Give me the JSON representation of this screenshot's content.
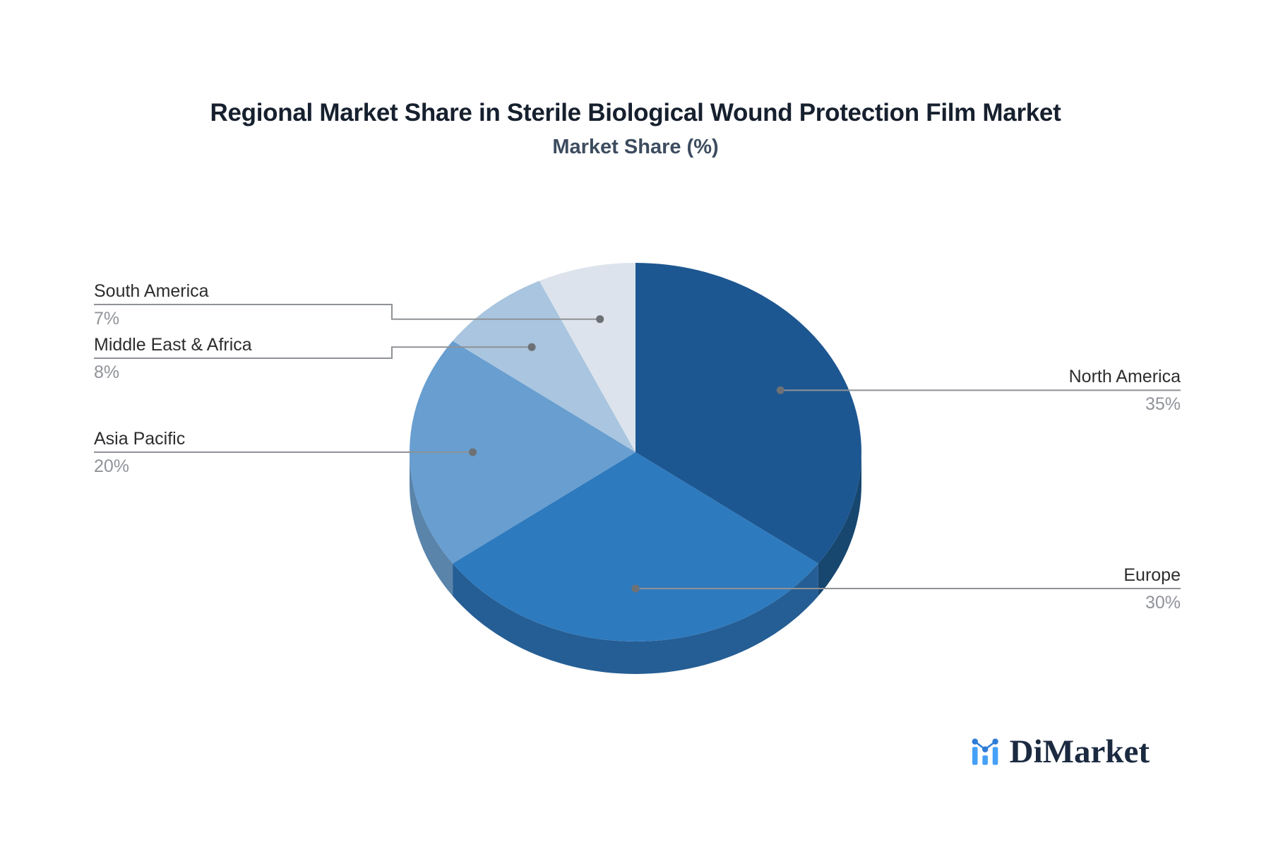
{
  "page": {
    "title": "Regional Market Share in Sterile Biological Wound Protection Film Market",
    "subtitle": "Market Share (%)"
  },
  "chart_data": {
    "type": "pie",
    "style": "3d-pie",
    "title": "Regional Market Share in Sterile Biological Wound Protection Film Market",
    "subtitle": "Market Share (%)",
    "unit": "%",
    "clockwise": true,
    "start_angle_deg_from_top": 0,
    "legend_position": "callout-labels",
    "slices": [
      {
        "label": "North America",
        "value": 35,
        "display": "35%",
        "color": "#1d5791",
        "side_color": "#17466f",
        "label_side": "right"
      },
      {
        "label": "Europe",
        "value": 30,
        "display": "30%",
        "color": "#2e7abe",
        "side_color": "#255e94",
        "label_side": "right"
      },
      {
        "label": "Asia Pacific",
        "value": 20,
        "display": "20%",
        "color": "#689ed0",
        "side_color": "#5a84aa",
        "label_side": "left"
      },
      {
        "label": "Middle East & Africa",
        "value": 8,
        "display": "8%",
        "color": "#a9c5df",
        "side_color": "#8fb0cc",
        "label_side": "left"
      },
      {
        "label": "South America",
        "value": 7,
        "display": "7%",
        "color": "#dce3ec",
        "side_color": "#c2ccd9",
        "label_side": "left"
      }
    ],
    "colors": {
      "leader_line": "#8f9296",
      "leader_dot": "#6d7175",
      "label_text": "#2d2d2d",
      "percent_text": "#909399",
      "title_text": "#16202e",
      "subtitle_text": "#3d4c5f"
    }
  },
  "logo": {
    "text": "DiMarket",
    "icon": "bar-line-chart-icon",
    "icon_color": "#45a1f8",
    "accent_color": "#2e7cd6",
    "text_color": "#1b2a40"
  }
}
